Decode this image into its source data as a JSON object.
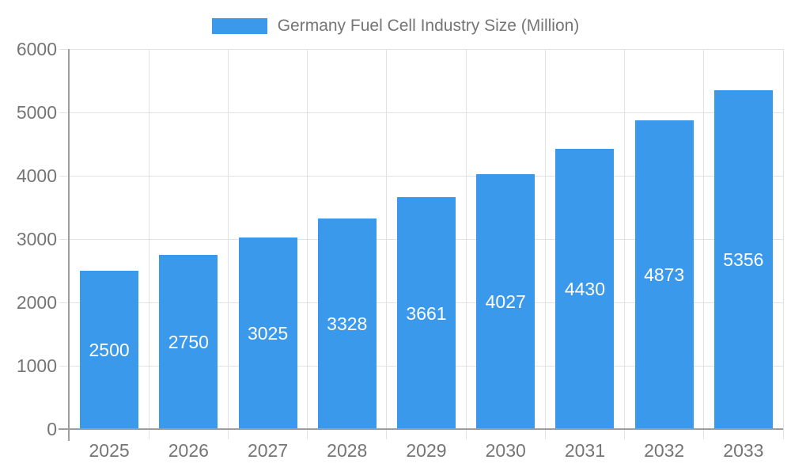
{
  "window": {
    "background": "#ffffff"
  },
  "legend": {
    "label": "Germany Fuel Cell Industry Size (Million)",
    "position": "top-center",
    "swatch_color": "#3b99ec"
  },
  "chart_data": {
    "type": "bar",
    "categories": [
      "2025",
      "2026",
      "2027",
      "2028",
      "2029",
      "2030",
      "2031",
      "2032",
      "2033"
    ],
    "series": [
      {
        "name": "Germany Fuel Cell Industry Size (Million)",
        "values": [
          2500,
          2750,
          3025,
          3328,
          3661,
          4027,
          4430,
          4873,
          5356
        ]
      }
    ],
    "data_labels_shown": true,
    "xlabel": "",
    "ylabel": "",
    "ylim": [
      0,
      6000
    ],
    "yticks": [
      0,
      1000,
      2000,
      3000,
      4000,
      5000,
      6000
    ],
    "grid": true,
    "legend_position": "top",
    "colors": {
      "bar": "#3b99ec",
      "bar_label": "#ffffff",
      "axis_text": "#757575",
      "grid_line": "#e2e2e2",
      "axis_line": "#9e9e9e",
      "background": "#ffffff"
    }
  }
}
